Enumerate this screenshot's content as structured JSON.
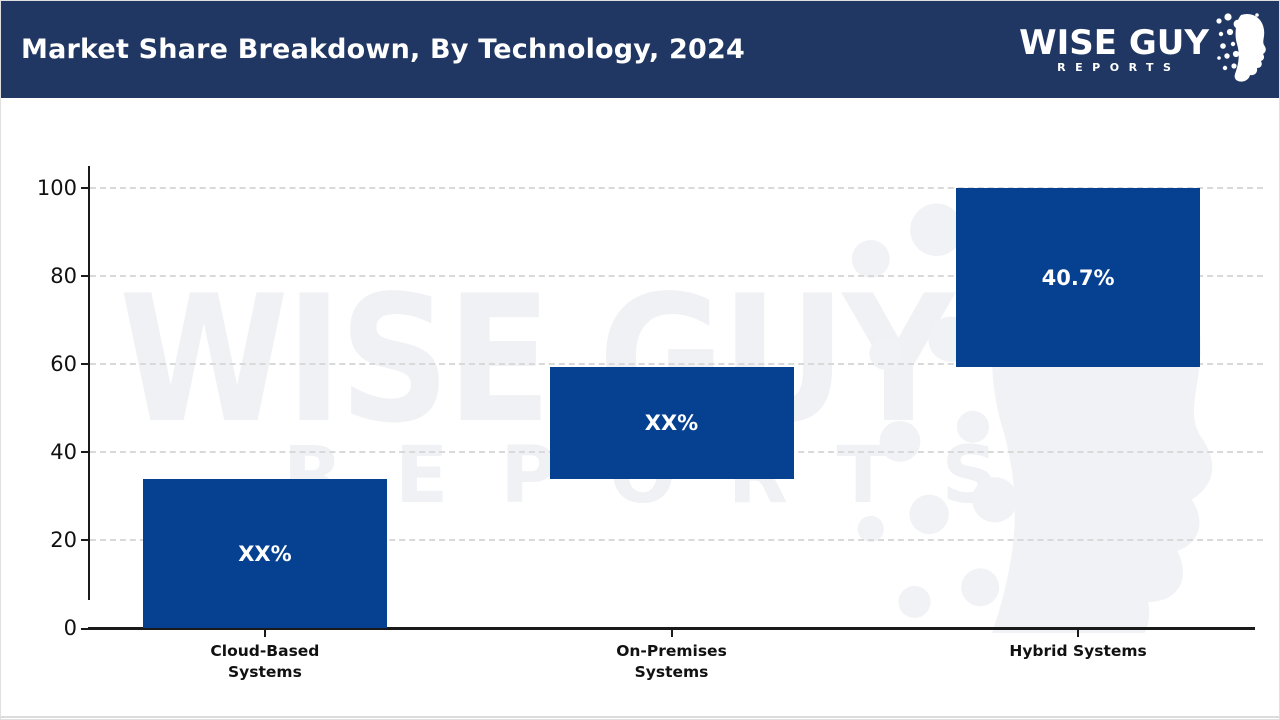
{
  "header": {
    "title": "Market Share Breakdown, By Technology, 2024",
    "bg_color": "#213763",
    "logo_line1": "WISE GUY",
    "logo_line2": "REPORTS"
  },
  "watermark": {
    "line1": "WISE GUY",
    "line2": "REPORTS"
  },
  "chart_data": {
    "type": "bar",
    "variant": "floating-segment-waterfall",
    "title": "Market Share Breakdown, By Technology, 2024",
    "categories": [
      "Cloud-Based Systems",
      "On-Premises Systems",
      "Hybrid Systems"
    ],
    "category_lines": [
      [
        "Cloud-Based",
        "Systems"
      ],
      [
        "On-Premises",
        "Systems"
      ],
      [
        "Hybrid Systems"
      ]
    ],
    "segments": [
      {
        "category": "Cloud-Based Systems",
        "start": 0,
        "end": 34,
        "label": "XX%"
      },
      {
        "category": "On-Premises Systems",
        "start": 34,
        "end": 59.3,
        "label": "XX%"
      },
      {
        "category": "Hybrid Systems",
        "start": 59.3,
        "end": 100,
        "label": "40.7%"
      }
    ],
    "ylim": [
      0,
      100
    ],
    "yticks": [
      0,
      20,
      40,
      60,
      80,
      100
    ],
    "grid": "horizontal-dashed",
    "legend": "none",
    "bar_color": "#064090",
    "bar_label_color": "#ffffff",
    "axis_color": "#1a1a1a",
    "gridline_color": "#d9d9d9",
    "watermark_color": "#f0f1f4"
  }
}
